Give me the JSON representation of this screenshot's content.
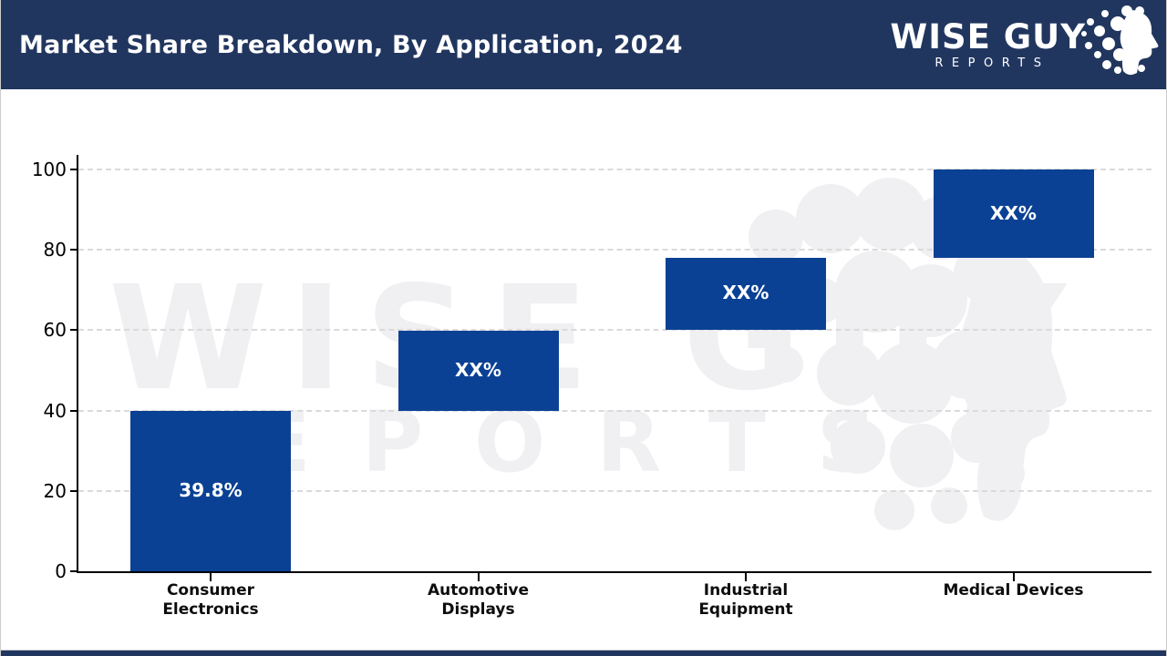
{
  "header": {
    "title": "Market Share Breakdown, By Application, 2024",
    "bg_color": "#21365f",
    "logo": {
      "wordmark": "WISE GUY",
      "subtitle": "REPORTS"
    }
  },
  "watermark": {
    "wordmark": "WISE GUY",
    "subtitle": "REPORTS"
  },
  "footer": {
    "bg_color": "#21365f"
  },
  "chart_data": {
    "type": "bar",
    "subtype": "waterfall-floating-bars",
    "title": "Market Share Breakdown, By Application, 2024",
    "xlabel": "",
    "ylabel": "",
    "categories": [
      "Consumer Electronics",
      "Automotive Displays",
      "Industrial Equipment",
      "Medical Devices"
    ],
    "bars": [
      {
        "category": "Consumer Electronics",
        "category_lines": [
          "Consumer",
          "Electronics"
        ],
        "start": 0,
        "end": 39.8,
        "label": "39.8%"
      },
      {
        "category": "Automotive Displays",
        "category_lines": [
          "Automotive",
          "Displays"
        ],
        "start": 39.8,
        "end": 59.8,
        "label": "XX%"
      },
      {
        "category": "Industrial Equipment",
        "category_lines": [
          "Industrial",
          "Equipment"
        ],
        "start": 60.2,
        "end": 77.9,
        "label": "XX%"
      },
      {
        "category": "Medical Devices",
        "category_lines": [
          "Medical Devices"
        ],
        "start": 78,
        "end": 99.9,
        "label": "XX%"
      }
    ],
    "yticks": [
      0,
      20,
      40,
      60,
      80,
      100
    ],
    "ylim": [
      0,
      103.6
    ],
    "grid": "horizontal-dashed",
    "legend": null,
    "colors": {
      "bar": "#0b4194",
      "bar_label": "#ffffff",
      "gridline": "#dadada",
      "axis": "#000000",
      "watermark": "#f0f0f2"
    }
  }
}
